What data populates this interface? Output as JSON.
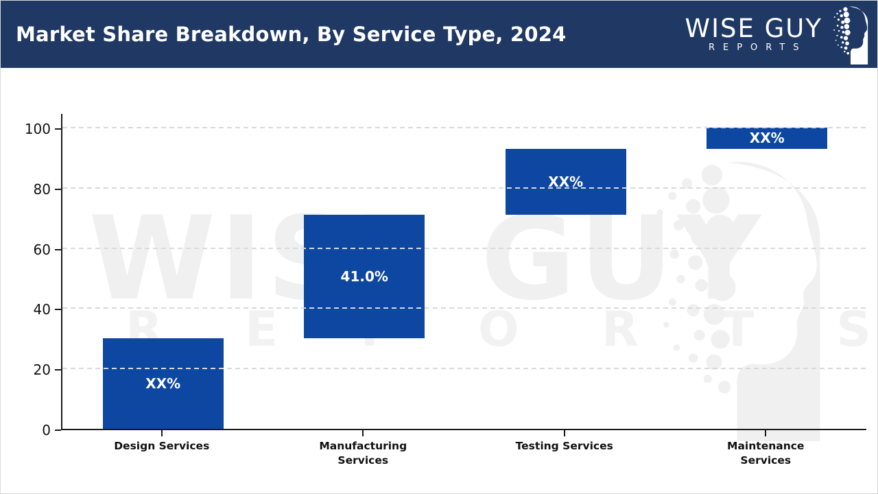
{
  "page": {
    "background": "#ffffff",
    "border_color": "#d9d9d9"
  },
  "header": {
    "title": "Market Share Breakdown, By Service Type, 2024",
    "background": "#1f3864",
    "logo": {
      "line1": "WISE GUY",
      "line2": "REPORTS",
      "icon": "dotted-face-profile"
    }
  },
  "watermark": {
    "line1": "WISE GUY",
    "line2": "R E P O R T S"
  },
  "chart_data": {
    "type": "bar",
    "variant": "waterfall",
    "title": "Market Share Breakdown, By Service Type, 2024",
    "categories": [
      "Design Services",
      "Manufacturing Services",
      "Testing Services",
      "Maintenance Services"
    ],
    "category_label_lines": [
      [
        "Design Services"
      ],
      [
        "Manufacturing",
        "Services"
      ],
      [
        "Testing Services"
      ],
      [
        "Maintenance",
        "Services"
      ]
    ],
    "segments": [
      {
        "category": "Design Services",
        "start": 0,
        "end": 30,
        "label": "XX%"
      },
      {
        "category": "Manufacturing Services",
        "start": 30,
        "end": 71,
        "label": "41.0%"
      },
      {
        "category": "Testing Services",
        "start": 71,
        "end": 93,
        "label": "XX%"
      },
      {
        "category": "Maintenance Services",
        "start": 93,
        "end": 100,
        "label": "XX%"
      }
    ],
    "values_pct": [
      30,
      41,
      22,
      7
    ],
    "yticks": [
      0,
      20,
      40,
      60,
      80,
      100
    ],
    "ylim": [
      0,
      105
    ],
    "xlabel": "",
    "ylabel": "",
    "legend": "none",
    "grid": {
      "axis": "y",
      "style": "dashed",
      "color": "#d9d9d9",
      "drawn_over_bars": true
    },
    "bar_color": "#0d47a1",
    "bar_label_color": "#ffffff",
    "axis_color": "#1a1a1a"
  }
}
